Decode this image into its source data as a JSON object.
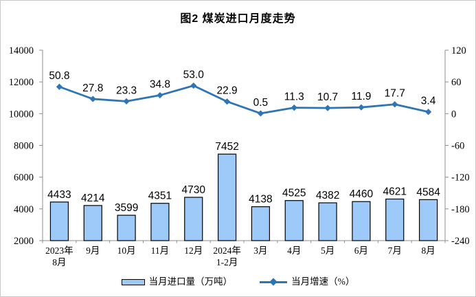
{
  "title": "图2 煤炭进口月度走势",
  "colors": {
    "bar_fill": "#9DCAF8",
    "bar_stroke": "#000000",
    "line": "#2E75B6",
    "axis": "#8C8C8C",
    "text": "#000000",
    "frame": "#C8C8C8"
  },
  "chart_data": {
    "type": "bar",
    "combo": "bar+line",
    "title": "图2 煤炭进口月度走势",
    "categories": [
      "2023年\n8月",
      "9月",
      "10月",
      "11月",
      "12月",
      "2024年\n1-2月",
      "3月",
      "4月",
      "5月",
      "6月",
      "7月",
      "8月"
    ],
    "series": [
      {
        "name": "当月进口量（万吨）",
        "type": "bar",
        "axis": "left",
        "values": [
          4433,
          4214,
          3599,
          4351,
          4730,
          7452,
          4138,
          4525,
          4382,
          4460,
          4621,
          4584
        ]
      },
      {
        "name": "当月增速（%）",
        "type": "line",
        "axis": "right",
        "values": [
          50.8,
          27.8,
          23.3,
          34.8,
          53.0,
          22.9,
          0.5,
          11.3,
          10.7,
          11.9,
          17.7,
          3.4
        ]
      }
    ],
    "left_axis": {
      "min": 2000,
      "max": 14000,
      "step": 2000,
      "ticks": [
        14000,
        12000,
        10000,
        8000,
        6000,
        4000,
        2000
      ]
    },
    "right_axis": {
      "min": -240,
      "max": 120,
      "step": 60,
      "ticks": [
        120,
        60,
        0,
        -60,
        -120,
        -180,
        -240
      ]
    },
    "grid": false,
    "legend_position": "bottom",
    "xlabel": "",
    "ylabel_left": "",
    "ylabel_right": ""
  }
}
